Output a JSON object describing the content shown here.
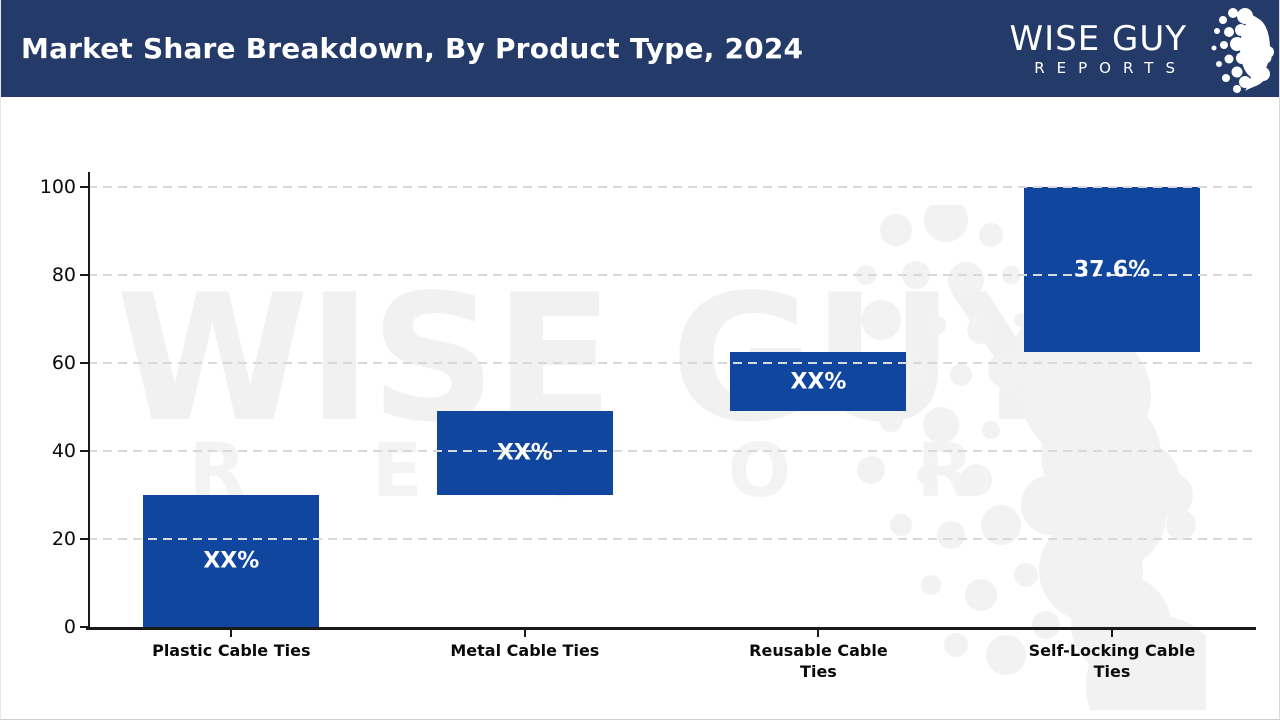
{
  "header": {
    "title": "Market Share Breakdown, By Product Type, 2024",
    "logo": {
      "line1": "WISE GUY",
      "line2": "REPORTS"
    }
  },
  "watermark": {
    "line1": "WISE GUY",
    "line2": "R E P O R T S"
  },
  "chart_data": {
    "type": "bar",
    "subtype": "floating-waterfall",
    "title": "Market Share Breakdown, By Product Type, 2024",
    "categories": [
      "Plastic Cable Ties",
      "Metal Cable Ties",
      "Reusable Cable Ties",
      "Self-Locking Cable Ties"
    ],
    "tick_labels": [
      "Plastic Cable Ties",
      "Metal Cable Ties",
      "Reusable Cable\nTies",
      "Self-Locking Cable\nTies"
    ],
    "segments": [
      {
        "category": "Plastic Cable Ties",
        "start": 0,
        "end": 30,
        "value_label": "XX%"
      },
      {
        "category": "Metal Cable Ties",
        "start": 30,
        "end": 49,
        "value_label": "XX%"
      },
      {
        "category": "Reusable Cable Ties",
        "start": 49,
        "end": 62.4,
        "value_label": "XX%"
      },
      {
        "category": "Self-Locking Cable Ties",
        "start": 62.4,
        "end": 100,
        "value_label": "37.6%"
      }
    ],
    "yticks": [
      0,
      20,
      40,
      60,
      80,
      100
    ],
    "ylim": [
      0,
      103.5
    ],
    "xlabel": "",
    "ylabel": "",
    "grid": "horizontal-dashed",
    "legend": "none",
    "colors": {
      "bar": "#10469e",
      "header_bg": "#243a68",
      "grid": "#d9d9d9",
      "axis": "#1a1a1a",
      "bar_label_text": "#ffffff",
      "watermark": "#f1f1f1"
    }
  }
}
